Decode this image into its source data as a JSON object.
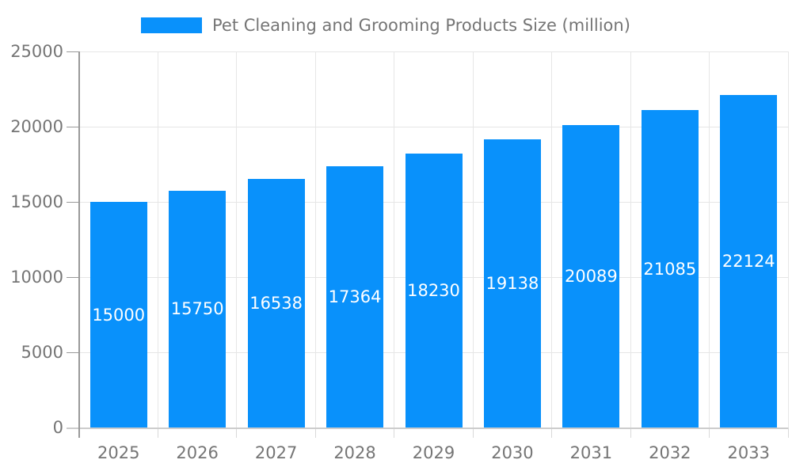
{
  "chart_data": {
    "type": "bar",
    "title": "Pet Cleaning and Grooming Products Size (million)",
    "categories": [
      "2025",
      "2026",
      "2027",
      "2028",
      "2029",
      "2030",
      "2031",
      "2032",
      "2033"
    ],
    "series": [
      {
        "name": "Pet Cleaning and Grooming Products Size (million)",
        "values": [
          15000,
          15750,
          16538,
          17364,
          18230,
          19138,
          20089,
          21085,
          22124
        ]
      }
    ],
    "value_labels": [
      "15000",
      "15750",
      "16538",
      "17364",
      "18230",
      "19138",
      "20089",
      "21085",
      "22124"
    ],
    "xlabel": "",
    "ylabel": "",
    "ylim": [
      0,
      25000
    ],
    "yticks": [
      0,
      5000,
      10000,
      15000,
      20000,
      25000
    ],
    "ytick_labels": [
      "0",
      "5000",
      "10000",
      "15000",
      "20000",
      "25000"
    ],
    "grid": true,
    "legend_position": "top",
    "colors": {
      "bar": "#0991fb",
      "value_label": "#ffffff",
      "axis_text": "#757575",
      "legend_text": "#757575",
      "gridline": "#e6e6e6",
      "y_axis_line": "#999999",
      "x_axis_line": "#cccccc",
      "x_tick": "#d9d9d9",
      "background": "#ffffff"
    }
  }
}
